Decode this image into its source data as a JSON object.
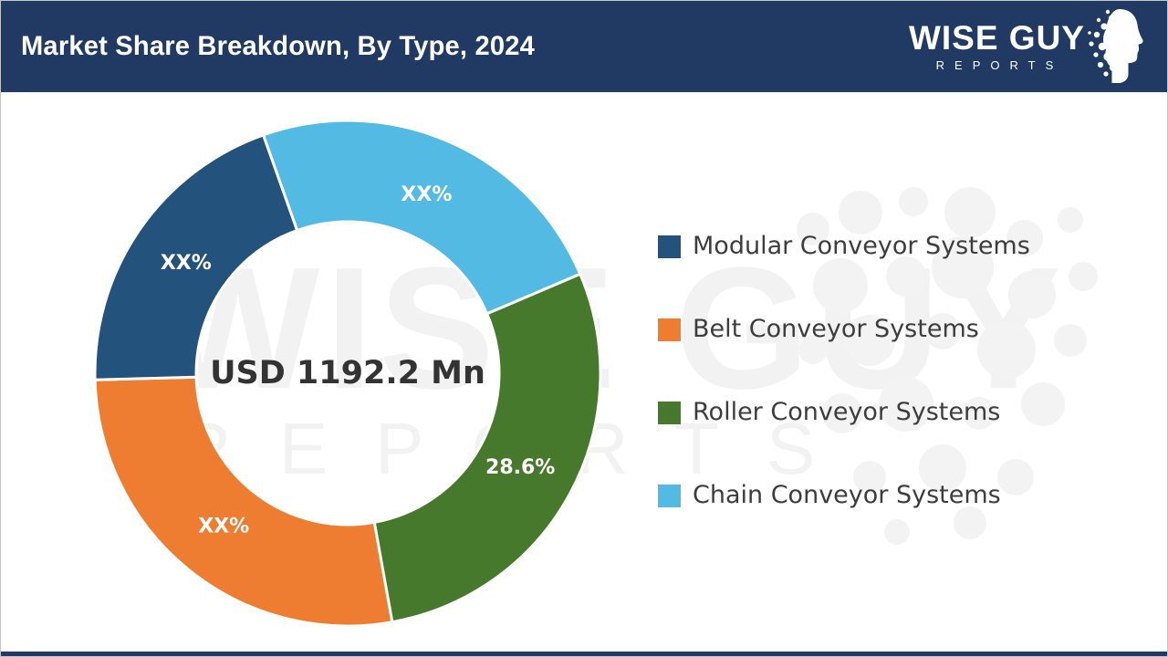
{
  "header": {
    "title": "Market Share Breakdown, By Type, 2024",
    "logo": {
      "wordmark": "WISE GUY",
      "subtitle": "REPORTS",
      "icon": "wise-guy-face-icon"
    }
  },
  "watermark": {
    "line1": "WISE GUY",
    "line2": "REPORTS"
  },
  "chart_data": {
    "type": "pie",
    "style": "donut",
    "title": "Market Share Breakdown, By Type, 2024",
    "center_label": "USD 1192.2 Mn",
    "start_angle_deg": 109.5,
    "clockwise": true,
    "inner_radius_ratio": 0.6,
    "legend_position": "right",
    "segments": [
      {
        "label": "Modular Conveyor Systems",
        "display_value": "XX%",
        "value_pct_est": 20.0,
        "color": "#23527C"
      },
      {
        "label": "Belt Conveyor Systems",
        "display_value": "XX%",
        "value_pct_est": 27.4,
        "color": "#EE7D31"
      },
      {
        "label": "Roller Conveyor Systems",
        "display_value": "28.6%",
        "value_pct_est": 28.6,
        "color": "#47792C"
      },
      {
        "label": "Chain Conveyor Systems",
        "display_value": "XX%",
        "value_pct_est": 24.0,
        "color": "#52BAE3"
      }
    ],
    "draw_order": [
      3,
      2,
      1,
      0
    ]
  },
  "colors": {
    "header_bg": "#203A64",
    "footer_bg": "#203A64",
    "center_text": "#333333",
    "legend_text": "#3D3D3D",
    "watermark": "#F2F2F2"
  }
}
